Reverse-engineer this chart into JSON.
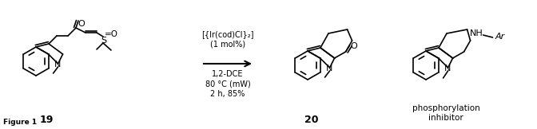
{
  "figure_width": 6.72,
  "figure_height": 1.62,
  "dpi": 100,
  "background_color": "#ffffff",
  "compound_19_label": "19",
  "compound_20_label": "20",
  "reagents_line1": "[{Ir(cod)Cl}₂]",
  "reagents_line2": "(1 mol%)",
  "conditions_line1": "1,2-DCE",
  "conditions_line2": "80 °C (mW)",
  "conditions_line3": "2 h, 85%",
  "product_label": "phosphorylation\ninhibitor",
  "arrow_label": "Ar",
  "nh_label": "NH",
  "font_size_labels": 8,
  "text_color": "#000000",
  "lw": 1.2
}
